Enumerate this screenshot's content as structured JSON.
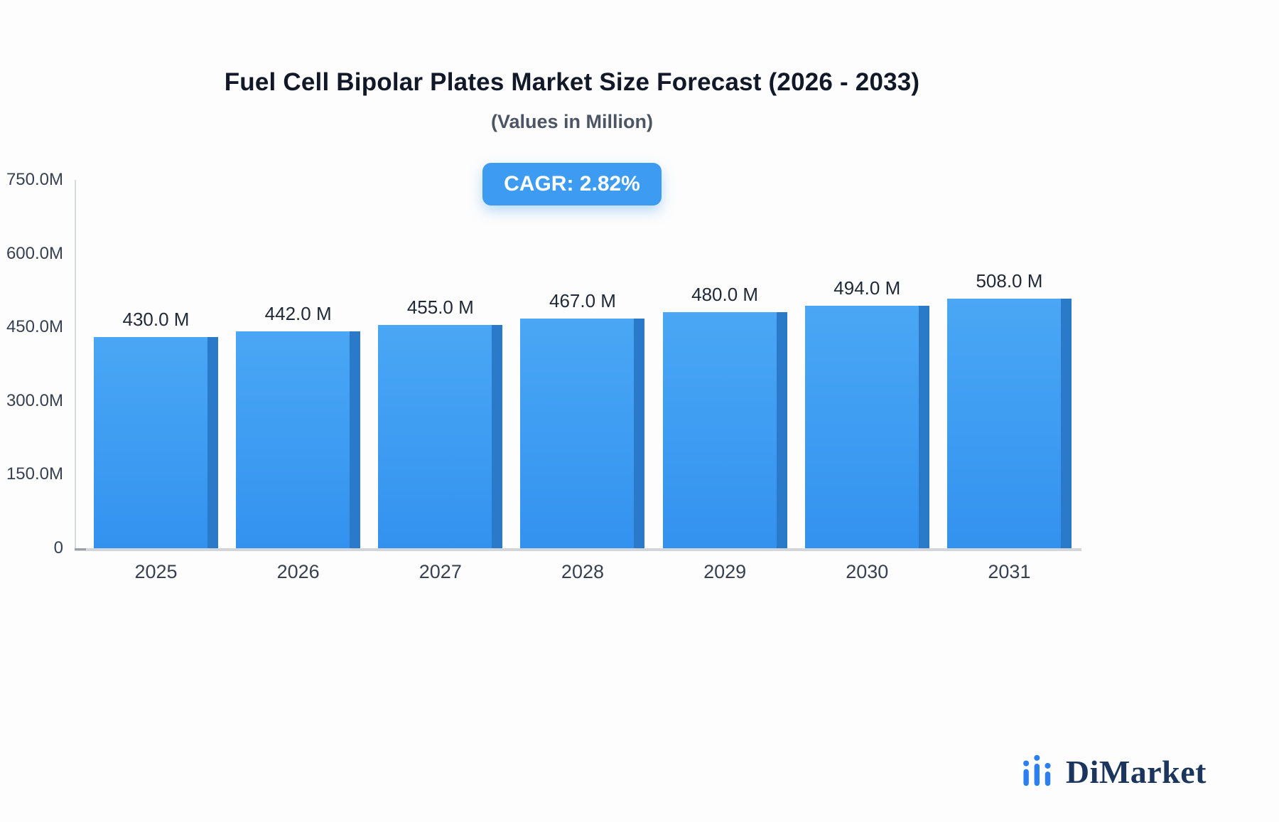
{
  "title": "Fuel Cell Bipolar Plates Market Size Forecast (2026 - 2033)",
  "subtitle": "(Values in Million)",
  "badge": "CAGR: 2.82%",
  "logo": {
    "text": "DiMarket"
  },
  "chart_data": {
    "type": "bar",
    "categories": [
      "2025",
      "2026",
      "2027",
      "2028",
      "2029",
      "2030",
      "2031"
    ],
    "values": [
      430,
      442,
      455,
      467,
      480,
      494,
      508
    ],
    "value_labels": [
      "430.0 M",
      "442.0 M",
      "455.0 M",
      "467.0 M",
      "480.0 M",
      "494.0 M",
      "508.0 M"
    ],
    "title": "Fuel Cell Bipolar Plates Market Size Forecast (2026 - 2033)",
    "subtitle": "(Values in Million)",
    "cagr": "2.82%",
    "xlabel": "",
    "ylabel": "",
    "ylim": [
      0,
      750
    ],
    "yticks": [
      "750.0M",
      "600.0M",
      "450.0M",
      "300.0M",
      "150.0M",
      "0"
    ],
    "grid": false,
    "legend": false,
    "bar_color": "#3d9bf2",
    "bar_side_color": "#2a7ac9",
    "badge_color": "#3d9bf2"
  }
}
